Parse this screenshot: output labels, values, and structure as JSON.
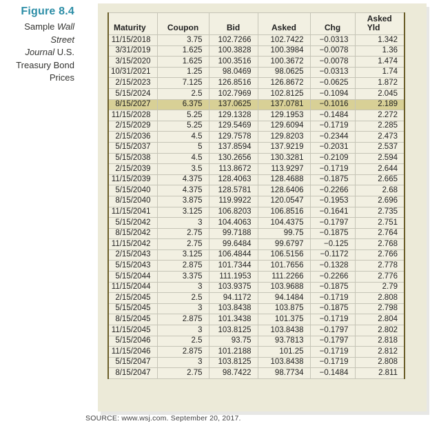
{
  "figure": {
    "title": "Figure 8.4",
    "caption": {
      "line1_regular": "Sample ",
      "line1_italic": "Wall Street",
      "line2_italic": "Journal",
      "line2_regular": " U.S.",
      "line3": "Treasury Bond",
      "line4": "Prices"
    }
  },
  "table": {
    "headers": {
      "maturity": "Maturity",
      "coupon": "Coupon",
      "bid": "Bid",
      "asked": "Asked",
      "chg": "Chg",
      "asked_yld_line1": "Asked",
      "asked_yld_line2": "Yld"
    },
    "column_keys": [
      "maturity",
      "coupon",
      "bid",
      "asked",
      "chg",
      "asked-yld"
    ],
    "highlighted_row_index": 6,
    "rows": [
      [
        "11/15/2018",
        "3.75",
        "102.7266",
        "102.7422",
        "−0.0313",
        "1.342"
      ],
      [
        "3/31/2019",
        "1.625",
        "100.3828",
        "100.3984",
        "−0.0078",
        "1.36"
      ],
      [
        "3/15/2020",
        "1.625",
        "100.3516",
        "100.3672",
        "−0.0078",
        "1.474"
      ],
      [
        "10/31/2021",
        "1.25",
        "98.0469",
        "98.0625",
        "−0.0313",
        "1.74"
      ],
      [
        "2/15/2023",
        "7.125",
        "126.8516",
        "126.8672",
        "−0.0625",
        "1.872"
      ],
      [
        "5/15/2024",
        "2.5",
        "102.7969",
        "102.8125",
        "−0.1094",
        "2.045"
      ],
      [
        "8/15/2027",
        "6.375",
        "137.0625",
        "137.0781",
        "−0.1016",
        "2.189"
      ],
      [
        "11/15/2028",
        "5.25",
        "129.1328",
        "129.1953",
        "−0.1484",
        "2.272"
      ],
      [
        "2/15/2029",
        "5.25",
        "129.5469",
        "129.6094",
        "−0.1719",
        "2.285"
      ],
      [
        "2/15/2036",
        "4.5",
        "129.7578",
        "129.8203",
        "−0.2344",
        "2.473"
      ],
      [
        "5/15/2037",
        "5",
        "137.8594",
        "137.9219",
        "−0.2031",
        "2.537"
      ],
      [
        "5/15/2038",
        "4.5",
        "130.2656",
        "130.3281",
        "−0.2109",
        "2.594"
      ],
      [
        "2/15/2039",
        "3.5",
        "113.8672",
        "113.9297",
        "−0.1719",
        "2.644"
      ],
      [
        "11/15/2039",
        "4.375",
        "128.4063",
        "128.4688",
        "−0.1875",
        "2.665"
      ],
      [
        "5/15/2040",
        "4.375",
        "128.5781",
        "128.6406",
        "−0.2266",
        "2.68"
      ],
      [
        "8/15/2040",
        "3.875",
        "119.9922",
        "120.0547",
        "−0.1953",
        "2.696"
      ],
      [
        "11/15/2041",
        "3.125",
        "106.8203",
        "106.8516",
        "−0.1641",
        "2.735"
      ],
      [
        "5/15/2042",
        "3",
        "104.4063",
        "104.4375",
        "−0.1797",
        "2.751"
      ],
      [
        "8/15/2042",
        "2.75",
        "99.7188",
        "99.75",
        "−0.1875",
        "2.764"
      ],
      [
        "11/15/2042",
        "2.75",
        "99.6484",
        "99.6797",
        "−0.125",
        "2.768"
      ],
      [
        "2/15/2043",
        "3.125",
        "106.4844",
        "106.5156",
        "−0.1172",
        "2.766"
      ],
      [
        "5/15/2043",
        "2.875",
        "101.7344",
        "101.7656",
        "−0.1328",
        "2.778"
      ],
      [
        "5/15/2044",
        "3.375",
        "111.1953",
        "111.2266",
        "−0.2266",
        "2.776"
      ],
      [
        "11/15/2044",
        "3",
        "103.9375",
        "103.9688",
        "−0.1875",
        "2.79"
      ],
      [
        "2/15/2045",
        "2.5",
        "94.1172",
        "94.1484",
        "−0.1719",
        "2.808"
      ],
      [
        "5/15/2045",
        "3",
        "103.8438",
        "103.875",
        "−0.1875",
        "2.798"
      ],
      [
        "8/15/2045",
        "2.875",
        "101.3438",
        "101.375",
        "−0.1719",
        "2.804"
      ],
      [
        "11/15/2045",
        "3",
        "103.8125",
        "103.8438",
        "−0.1797",
        "2.802"
      ],
      [
        "5/15/2046",
        "2.5",
        "93.75",
        "93.7813",
        "−0.1797",
        "2.818"
      ],
      [
        "11/15/2046",
        "2.875",
        "101.2188",
        "101.25",
        "−0.1719",
        "2.812"
      ],
      [
        "5/15/2047",
        "3",
        "103.8125",
        "103.8438",
        "−0.1719",
        "2.808"
      ],
      [
        "8/15/2047",
        "2.75",
        "98.7422",
        "98.7734",
        "−0.1484",
        "2.811"
      ]
    ]
  },
  "source": "SOURCE: www.wsj.com. September 20, 2017.",
  "colors": {
    "accent_teal": "#2b8da6",
    "panel_bg": "#ecead8",
    "row_bg": "#f2f0e2",
    "highlight_bg": "#d8d096",
    "table_border": "#6a5d28",
    "grid_line": "#c5c4b6"
  }
}
